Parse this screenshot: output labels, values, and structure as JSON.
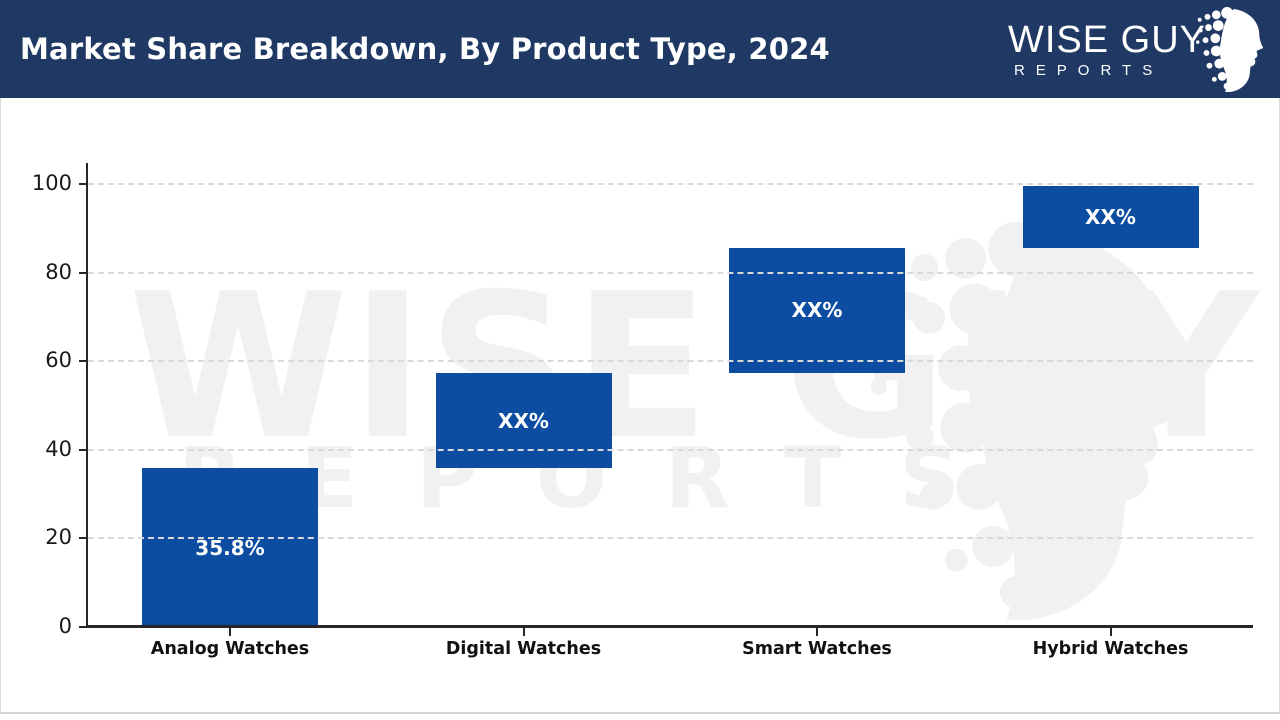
{
  "header": {
    "title": "Market Share Breakdown, By Product Type, 2024",
    "logo": {
      "line1": "WISE GUY",
      "line2": "REPORTS"
    }
  },
  "watermark": {
    "line1": "WISE GUY",
    "line2": "REPORTS"
  },
  "icons": {
    "logo_head": "dotted-head-profile",
    "watermark_head": "dotted-head-profile"
  },
  "colors": {
    "header_bg": "#1F3864",
    "bar": "#0C4DA2",
    "bar_label": "#FFFFFF",
    "axis": "#262626",
    "grid": "#D9D9D9",
    "tick_text": "#1A1A1A",
    "watermark": "#F1F1F1"
  },
  "chart_data": {
    "type": "bar",
    "variant": "floating-waterfall",
    "title": "Market Share Breakdown, By Product Type, 2024",
    "categories": [
      "Analog Watches",
      "Digital Watches",
      "Smart Watches",
      "Hybrid Watches"
    ],
    "segments": [
      {
        "category": "Analog Watches",
        "start": 0,
        "end": 35.8,
        "label": "35.8%"
      },
      {
        "category": "Digital Watches",
        "start": 35.8,
        "end": 57.3,
        "label": "XX%"
      },
      {
        "category": "Smart Watches",
        "start": 57.3,
        "end": 85.6,
        "label": "XX%"
      },
      {
        "category": "Hybrid Watches",
        "start": 85.6,
        "end": 99.6,
        "label": "XX%"
      }
    ],
    "yticks": [
      0,
      20,
      40,
      60,
      80,
      100
    ],
    "ylim": [
      0,
      105
    ],
    "xlabel": "",
    "ylabel": "",
    "grid": "horizontal-dashed",
    "legend": "none"
  }
}
